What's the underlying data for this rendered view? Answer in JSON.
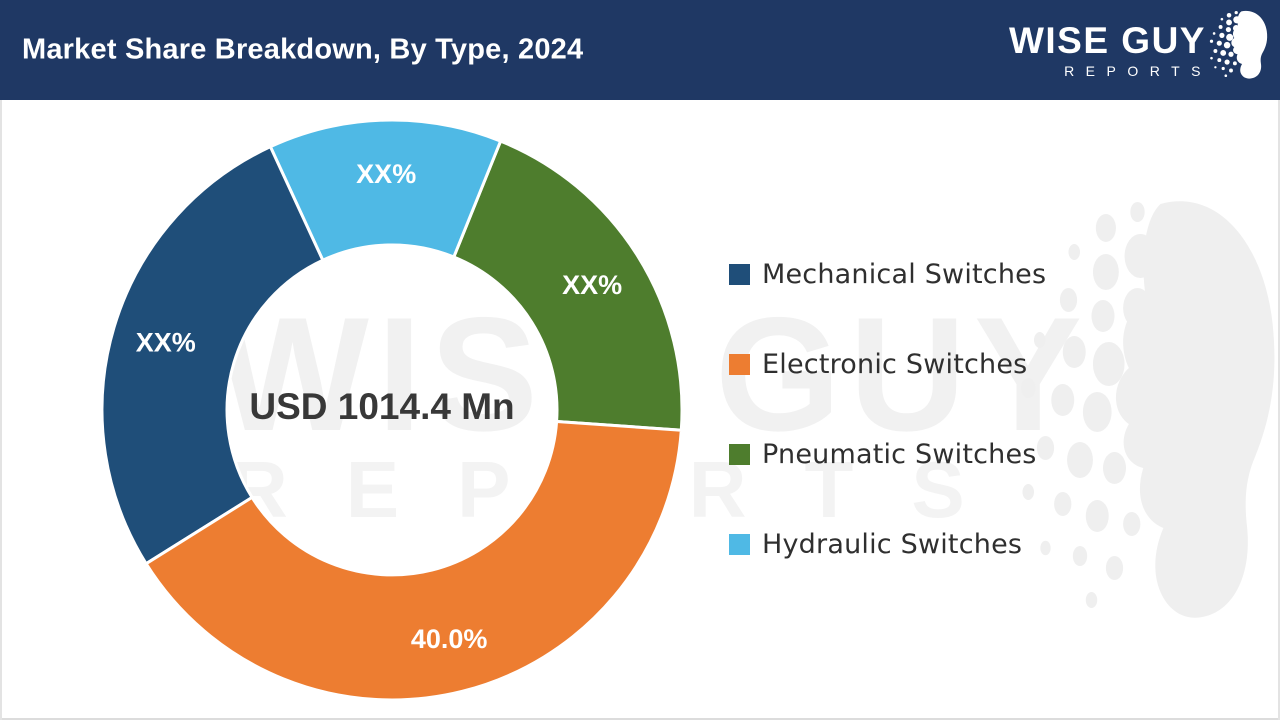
{
  "header": {
    "title": "Market Share Breakdown, By Type, 2024",
    "logo": {
      "line1": "WISE GUY",
      "line2": "REPORTS"
    }
  },
  "watermark": {
    "line1": "WISE GUY",
    "line2": "REPORTS"
  },
  "chart_data": {
    "type": "pie",
    "subtype": "donut",
    "title": "Market Share Breakdown, By Type, 2024",
    "center_label": "USD 1014.4 Mn",
    "total_value": "USD 1014.4 Mn",
    "inner_radius_ratio": 0.57,
    "start_angle_deg": -4,
    "direction": "counterclockwise",
    "legend_position": "right",
    "slices": [
      {
        "id": "mechanical",
        "label": "Mechanical Switches",
        "color": "#1f4e79",
        "data_label": "XX%",
        "value_pct_est": 27
      },
      {
        "id": "electronic",
        "label": "Electronic Switches",
        "color": "#ed7d31",
        "data_label": "40.0%",
        "value_pct_est": 40
      },
      {
        "id": "pneumatic",
        "label": "Pneumatic Switches",
        "color": "#4e7d2d",
        "data_label": "XX%",
        "value_pct_est": 20
      },
      {
        "id": "hydraulic",
        "label": "Hydraulic Switches",
        "color": "#4fb9e5",
        "data_label": "XX%",
        "value_pct_est": 13
      }
    ],
    "draw_order": [
      "pneumatic",
      "hydraulic",
      "mechanical",
      "electronic"
    ]
  },
  "colors": {
    "header_bg": "#1f3864",
    "watermark": "#f1f1f1",
    "center_text": "#383838",
    "slice_border": "#ffffff"
  }
}
